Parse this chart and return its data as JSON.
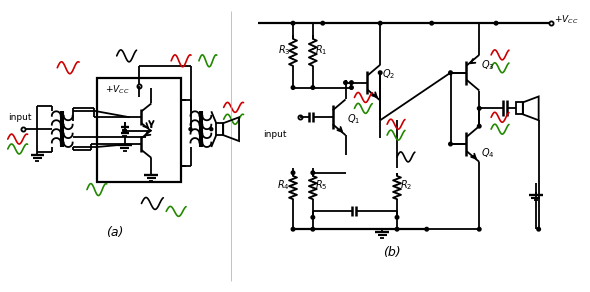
{
  "bg_color": "#ffffff",
  "line_color": "#000000",
  "red_color": "#cc0000",
  "green_color": "#228800",
  "title_a": "(a)",
  "title_b": "(b)",
  "label_input": "input"
}
